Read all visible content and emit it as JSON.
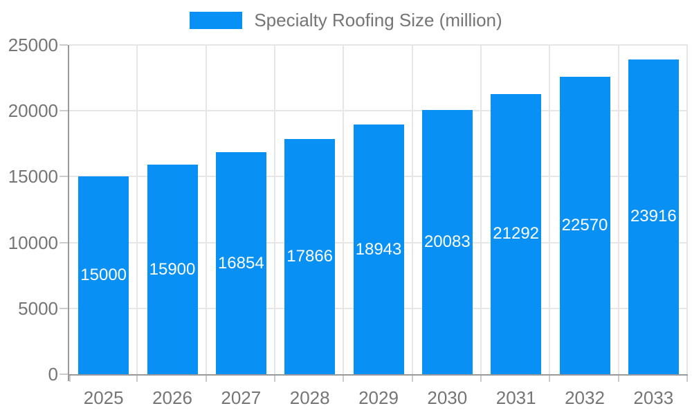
{
  "chart_data": {
    "type": "bar",
    "title": "Specialty Roofing Size (million)",
    "categories": [
      "2025",
      "2026",
      "2027",
      "2028",
      "2029",
      "2030",
      "2031",
      "2032",
      "2033"
    ],
    "series": [
      {
        "name": "Specialty Roofing Size (million)",
        "values": [
          15000,
          15900,
          16854,
          17866,
          18943,
          20083,
          21292,
          22570,
          23916
        ]
      }
    ],
    "xlabel": "",
    "ylabel": "",
    "ylim": [
      0,
      25000
    ],
    "ytick_step": 5000,
    "ytick_labels": [
      "0",
      "5000",
      "10000",
      "15000",
      "20000",
      "25000"
    ],
    "grid": true,
    "value_labels_shown": true,
    "legend_position": "top-center",
    "colors": {
      "bar": "#0890f5",
      "value_label": "#ffffff",
      "axis_text": "#757575",
      "axis_line": "#999999",
      "tick": "#cccccc",
      "gridline": "#e6e6e6",
      "background": "#ffffff"
    }
  },
  "legend": {
    "label": "Specialty Roofing Size (million)"
  }
}
